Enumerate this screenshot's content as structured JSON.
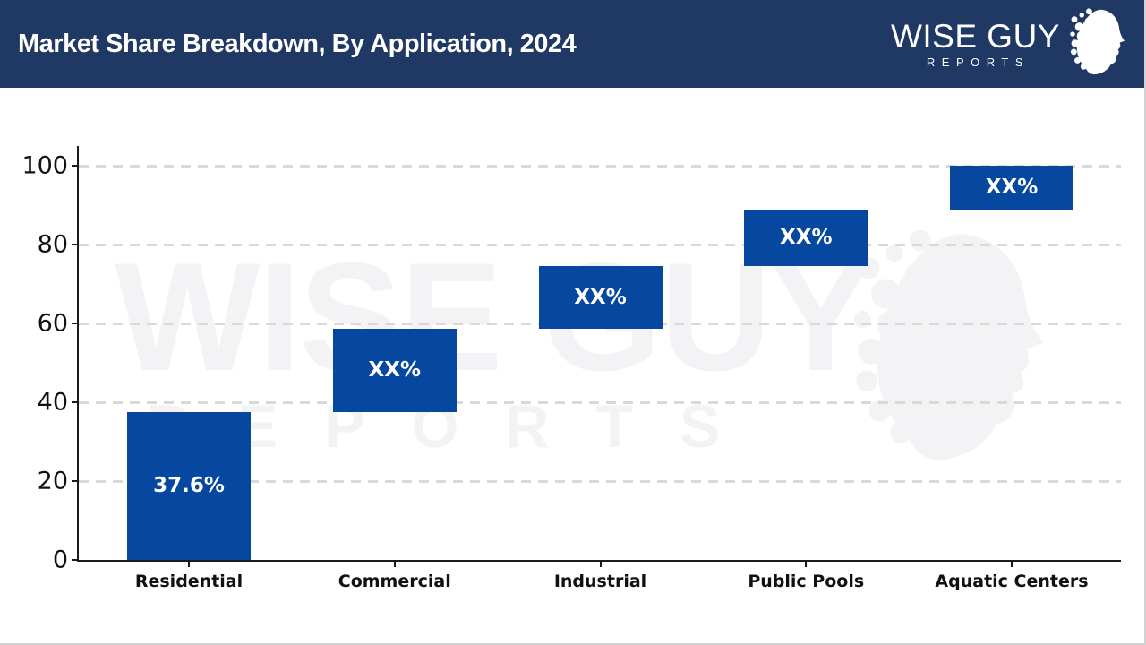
{
  "header": {
    "title": "Market Share Breakdown, By Application, 2024",
    "brand_line1": "WISE GUY",
    "brand_line2": "REPORTS"
  },
  "watermark": {
    "line1": "WISE GUY",
    "line2": "REPORTS"
  },
  "colors": {
    "header_bg": "#1f3864",
    "bar_fill": "#0647a0",
    "bar_label": "#ffffff",
    "gridline": "#d9d9d9",
    "axis": "#1a1a1a",
    "watermark": "#f3f3f5"
  },
  "chart_data": {
    "type": "bar",
    "subtype": "waterfall",
    "title": "Market Share Breakdown, By Application, 2024",
    "categories": [
      "Residential",
      "Commercial",
      "Industrial",
      "Public Pools",
      "Aquatic Centers"
    ],
    "segments": [
      {
        "category": "Residential",
        "start": 0,
        "end": 37.6,
        "value": 37.6,
        "label": "37.6%"
      },
      {
        "category": "Commercial",
        "start": 37.6,
        "end": 58.6,
        "value": 21.0,
        "label": "XX%"
      },
      {
        "category": "Industrial",
        "start": 58.6,
        "end": 74.6,
        "value": 16.0,
        "label": "XX%"
      },
      {
        "category": "Public Pools",
        "start": 74.6,
        "end": 88.9,
        "value": 14.3,
        "label": "XX%"
      },
      {
        "category": "Aquatic Centers",
        "start": 88.9,
        "end": 100.0,
        "value": 11.1,
        "label": "XX%"
      }
    ],
    "xlabel": "",
    "ylabel": "",
    "ylim": [
      0,
      105
    ],
    "yticks": [
      0,
      20,
      40,
      60,
      80,
      100
    ],
    "grid": "horizontal-dashed",
    "legend": "none",
    "units": "percent"
  }
}
